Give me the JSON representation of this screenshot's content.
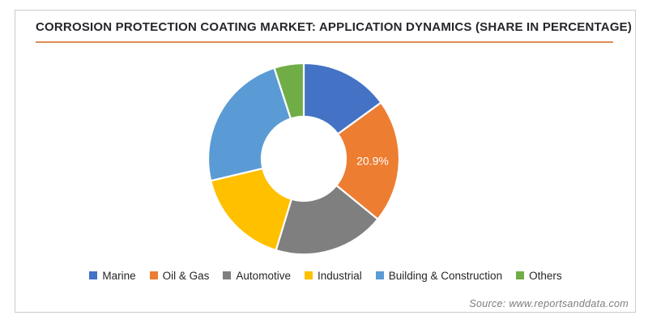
{
  "page": {
    "title": "CORROSION PROTECTION COATING MARKET: APPLICATION DYNAMICS (SHARE IN PERCENTAGE)",
    "source": "Source: www.reportsanddata.com"
  },
  "theme": {
    "accent_line_color": "#DD8C55",
    "frame_border_color": "#CBCBCB",
    "title_color": "#26262B",
    "legend_text_color": "#262626",
    "source_text_color": "#7D7D7D",
    "data_label_color": "#FFFFFF",
    "slice_separator_color": "#FFFFFF"
  },
  "chart_data": {
    "type": "pie",
    "subtype": "donut",
    "title": "CORROSION PROTECTION COATING MARKET: APPLICATION DYNAMICS (SHARE IN PERCENTAGE)",
    "categories": [
      "Marine",
      "Oil & Gas",
      "Automotive",
      "Industrial",
      "Building & Construction",
      "Others"
    ],
    "values": [
      15.0,
      20.9,
      18.8,
      16.6,
      23.7,
      5.0
    ],
    "colors": [
      "#4472C4",
      "#ED7D31",
      "#7F7F7F",
      "#FFC000",
      "#5B9BD5",
      "#70AD47"
    ],
    "data_labels": [
      "",
      "20.9%",
      "",
      "",
      "",
      ""
    ],
    "start_angle_deg": 0,
    "direction": "clockwise",
    "inner_radius_ratio": 0.44,
    "legend_position": "bottom",
    "unit": "percent"
  }
}
